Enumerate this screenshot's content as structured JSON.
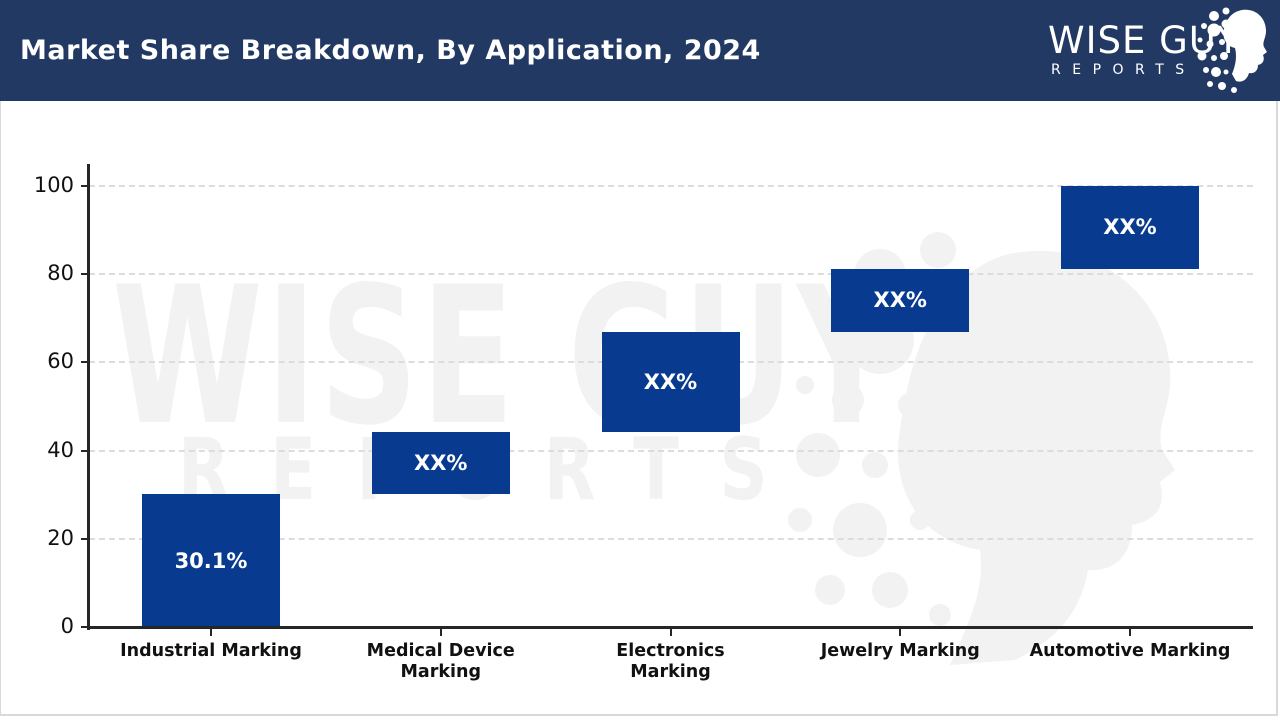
{
  "header": {
    "title": "Market Share Breakdown, By Application, 2024",
    "logo": {
      "name": "WISE GUY",
      "sub": "REPORTS"
    }
  },
  "watermark": {
    "line1": "WISE GUY",
    "line2": "REPORTS"
  },
  "colors": {
    "header_bg": "#223a63",
    "bar": "#083b90",
    "grid": "#dcdcdc",
    "axis": "#262626",
    "watermark": "#f2f2f2",
    "bar_label": "#ffffff"
  },
  "chart_data": {
    "type": "bar",
    "subtype": "waterfall",
    "title": "Market Share Breakdown, By Application, 2024",
    "xlabel": "",
    "ylabel": "",
    "ylim": [
      0,
      105
    ],
    "y_ticks": [
      0,
      20,
      40,
      60,
      80,
      100
    ],
    "grid": "horizontal-dashed",
    "legend": "none",
    "categories": [
      "Industrial Marking",
      "Medical Device\nMarking",
      "Electronics\nMarking",
      "Jewelry Marking",
      "Automotive Marking"
    ],
    "segments": [
      {
        "category": "Industrial Marking",
        "start": 0,
        "end": 30.1,
        "label": "30.1%"
      },
      {
        "category": "Medical Device Marking",
        "start": 30.1,
        "end": 44.2,
        "label": "XX%"
      },
      {
        "category": "Electronics Marking",
        "start": 44.2,
        "end": 67.0,
        "label": "XX%"
      },
      {
        "category": "Jewelry Marking",
        "start": 67.0,
        "end": 81.2,
        "label": "XX%"
      },
      {
        "category": "Automotive Marking",
        "start": 81.2,
        "end": 100.0,
        "label": "XX%"
      }
    ]
  }
}
